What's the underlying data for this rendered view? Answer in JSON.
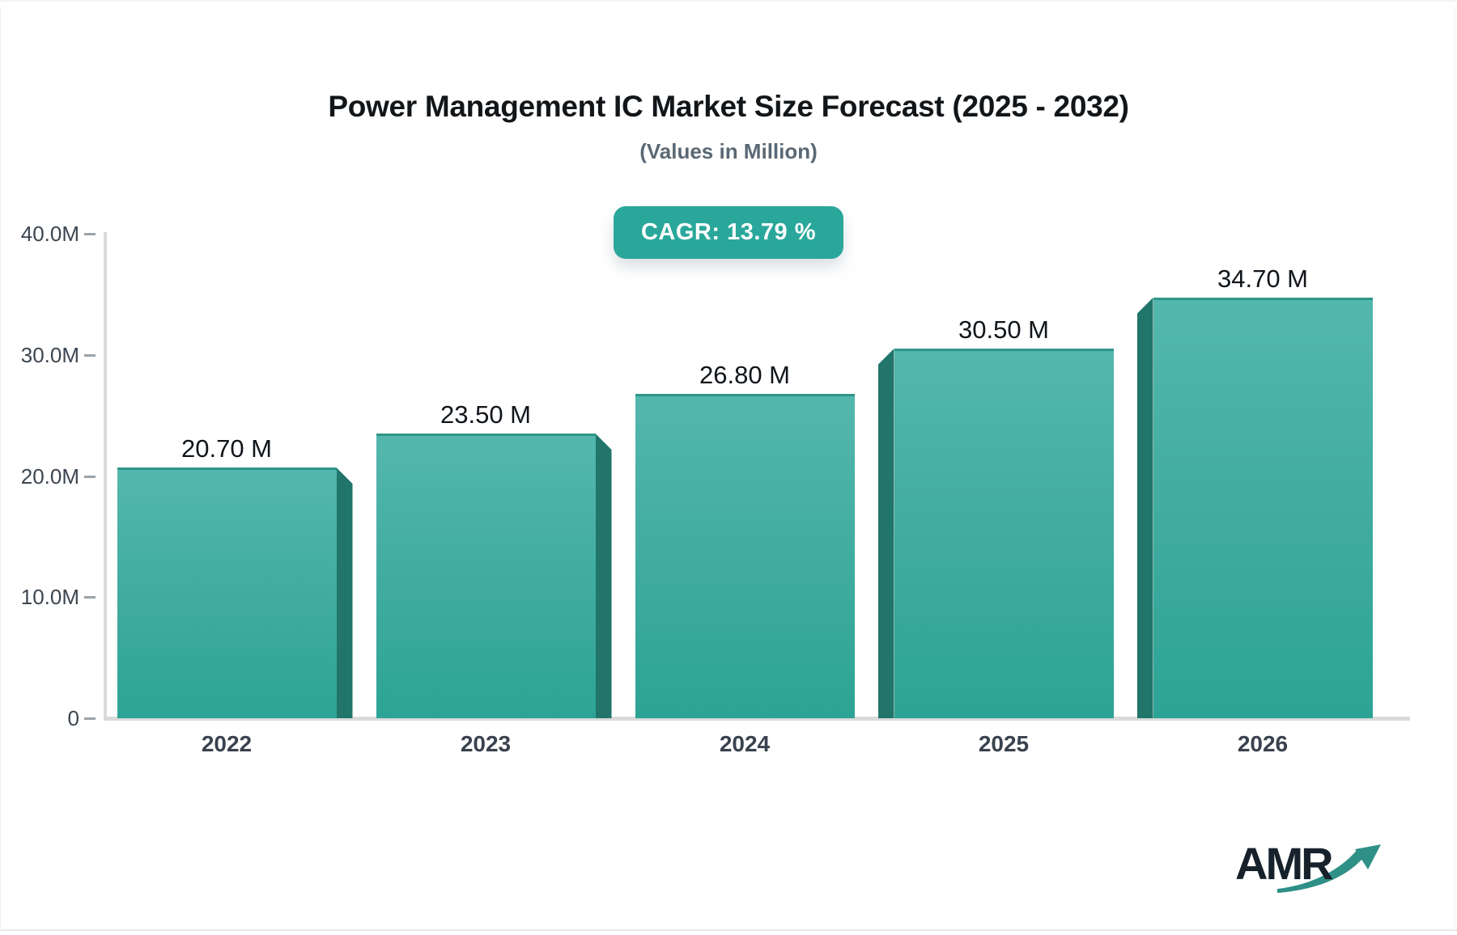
{
  "page": {
    "title": "Power Management IC Market Size Forecast (2025 - 2032)",
    "subtitle": "(Values in Million)",
    "cagr_label": "CAGR: 13.79 %",
    "logo_text": "AMR"
  },
  "colors": {
    "accent_teal": "#2aa79b",
    "bar_gradient_top": "#54b7ad",
    "bar_gradient_bottom": "#2ca495",
    "bar_side_face": "#21756b",
    "bar_top_edge": "#2f958a",
    "axis_line": "#d9dbdb",
    "tick_text": "#3c4650",
    "year_text": "#39424e",
    "value_text": "#10151a",
    "title_text": "#121619",
    "subtitle_text": "#5a6875",
    "logo_text_color": "#16212b",
    "logo_arrow": "#2f9087"
  },
  "chart_data": {
    "type": "bar",
    "title": "Power Management IC Market Size Forecast (2025 - 2032)",
    "subtitle": "(Values in Million)",
    "unit": "Million",
    "cagr": "13.79 %",
    "categories": [
      "2022",
      "2023",
      "2024",
      "2025",
      "2026"
    ],
    "values": [
      20.7,
      23.5,
      26.8,
      30.5,
      34.7
    ],
    "value_labels": [
      "20.70 M",
      "23.50 M",
      "26.80 M",
      "30.50 M",
      "34.70 M"
    ],
    "ylim": [
      0,
      40
    ],
    "yticks": [
      {
        "value": 0,
        "label": "0"
      },
      {
        "value": 10,
        "label": "10.0M"
      },
      {
        "value": 20,
        "label": "20.0M"
      },
      {
        "value": 30,
        "label": "30.0M"
      },
      {
        "value": 40,
        "label": "40.0M"
      }
    ],
    "grid": false,
    "legend": false,
    "bar_style": "3d-beveled-teal-gradient"
  }
}
